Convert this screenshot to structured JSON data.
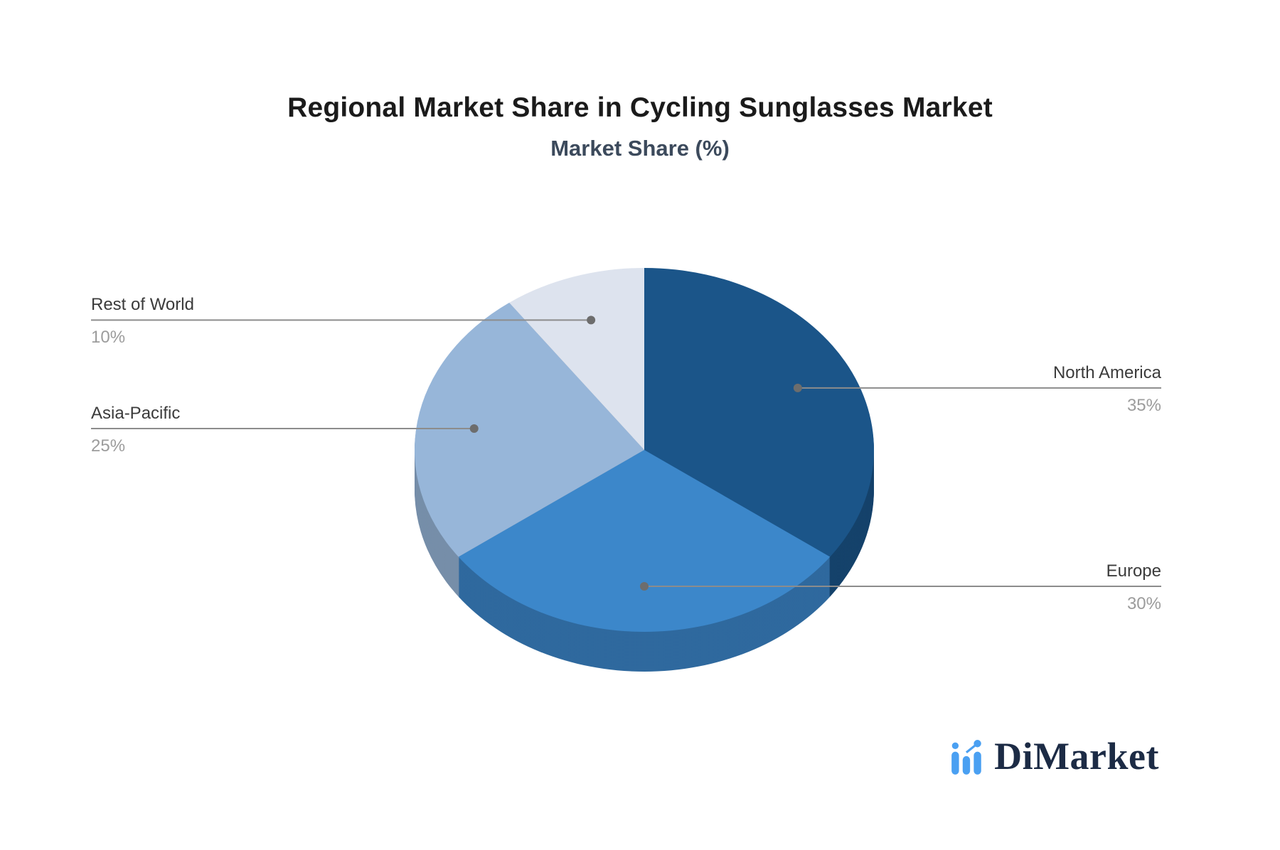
{
  "title": "Regional Market Share in Cycling Sunglasses Market",
  "subtitle": "Market Share (%)",
  "chart_data": {
    "type": "pie",
    "style": "3d",
    "title": "Regional Market Share in Cycling Sunglasses Market",
    "subtitle": "Market Share (%)",
    "unit": "%",
    "labels": [
      "North America",
      "Europe",
      "Asia-Pacific",
      "Rest of World"
    ],
    "values": [
      35,
      30,
      25,
      10
    ],
    "value_labels": [
      "35%",
      "30%",
      "25%",
      "10%"
    ],
    "colors": [
      "#1b5589",
      "#3c87ca",
      "#97b6d9",
      "#dde3ee"
    ],
    "start_angle_deg": 0,
    "direction": "clockwise",
    "legend": "none",
    "label_style": "leader-lines",
    "leader_line_color": "#8c8c8c",
    "leader_dot_color": "#6d6d6d",
    "label_text_color": "#3b3b3b",
    "value_text_color": "#9c9c9c"
  },
  "logo": {
    "text": "DiMarket",
    "icon": "bar-line-chart-icon",
    "icon_color": "#4aa0f2",
    "text_color": "#1c2b45"
  }
}
